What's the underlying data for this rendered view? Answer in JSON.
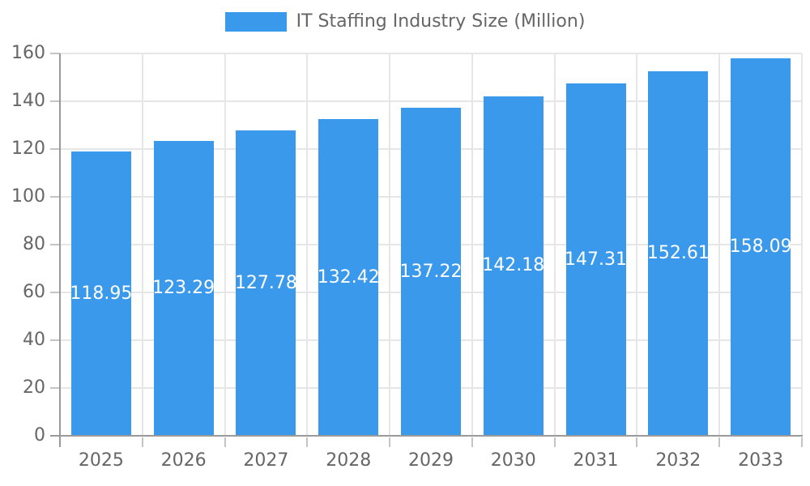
{
  "chart_data": {
    "type": "bar",
    "title": "IT Staffing Industry Size (Million)",
    "legend_position": "top",
    "categories": [
      "2025",
      "2026",
      "2027",
      "2028",
      "2029",
      "2030",
      "2031",
      "2032",
      "2033"
    ],
    "values": [
      118.95,
      123.29,
      127.78,
      132.42,
      137.22,
      142.18,
      147.31,
      152.61,
      158.09
    ],
    "value_labels": [
      "118.95",
      "123.29",
      "127.78",
      "132.42",
      "137.22",
      "142.18",
      "147.31",
      "152.61",
      "158.09"
    ],
    "ylim": [
      0,
      160
    ],
    "yticks": [
      0,
      20,
      40,
      60,
      80,
      100,
      120,
      140,
      160
    ],
    "ytick_labels": [
      "0",
      "20",
      "40",
      "60",
      "80",
      "100",
      "120",
      "140",
      "160"
    ],
    "grid": true,
    "xlabel": "",
    "ylabel": "",
    "colors": {
      "bar": "#3b99ec",
      "bar_value_text": "#ffffff",
      "axis_text": "#666666",
      "gridline": "#e6e6e6",
      "axis_line": "#9a9a9a",
      "tick_mark": "#c4c4c4"
    }
  }
}
